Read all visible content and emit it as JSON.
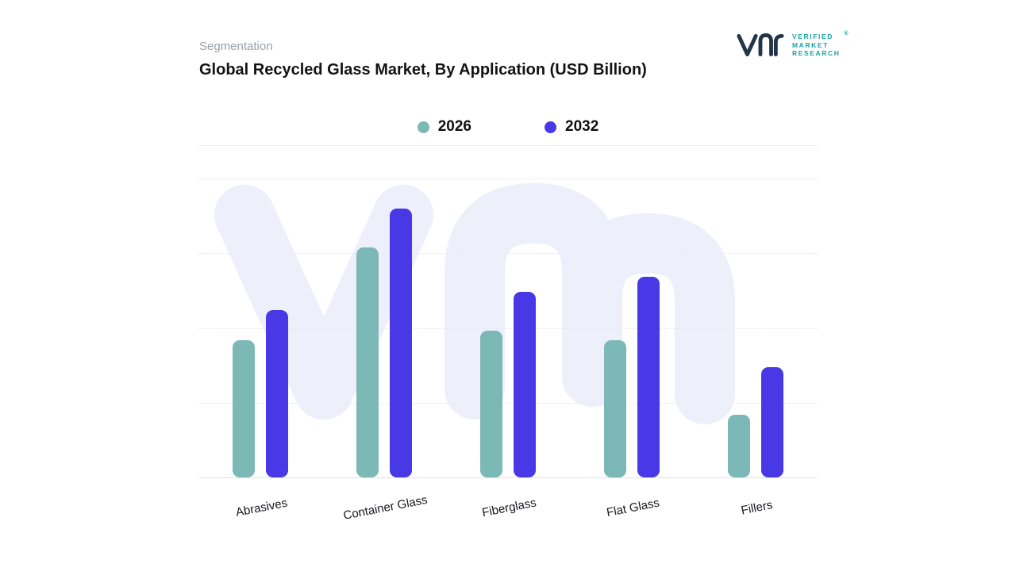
{
  "header": {
    "eyebrow": "Segmentation",
    "title": "Global Recycled Glass Market, By Application (USD Billion)"
  },
  "logo": {
    "lines": [
      "VERIFIED",
      "MARKET",
      "RESEARCH"
    ],
    "registered": "®"
  },
  "chart_data": {
    "type": "bar",
    "title": "Global Recycled Glass Market, By Application (USD Billion)",
    "categories": [
      "Abrasives",
      "Container Glass",
      "Fiberglass",
      "Flat Glass",
      "Fillers"
    ],
    "series": [
      {
        "name": "2026",
        "color": "#7cb9b6",
        "values": [
          46,
          77,
          49,
          46,
          21
        ]
      },
      {
        "name": "2032",
        "color": "#4838e6",
        "values": [
          56,
          90,
          62,
          67,
          37
        ]
      }
    ],
    "xlabel": "",
    "ylabel": "",
    "ylim": [
      0,
      100
    ],
    "gridlines_pct": [
      0,
      25,
      50,
      75
    ],
    "grid": "dashed-horizontal",
    "legend_position": "top-center",
    "value_axis_labels": false
  }
}
